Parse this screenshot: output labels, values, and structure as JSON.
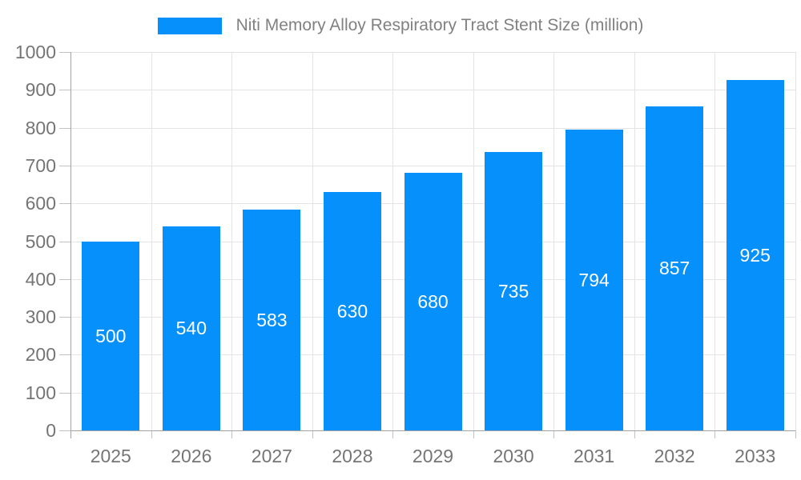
{
  "chart_data": {
    "type": "bar",
    "title": "Niti Memory Alloy Respiratory Tract Stent Size (million)",
    "categories": [
      "2025",
      "2026",
      "2027",
      "2028",
      "2029",
      "2030",
      "2031",
      "2032",
      "2033"
    ],
    "values": [
      500,
      540,
      583,
      630,
      680,
      735,
      794,
      857,
      925
    ],
    "xlabel": "",
    "ylabel": "",
    "ylim": [
      0,
      1000
    ],
    "ytick_step": 100,
    "ytick_labels": [
      "0",
      "100",
      "200",
      "300",
      "400",
      "500",
      "600",
      "700",
      "800",
      "900",
      "1000"
    ],
    "grid": true,
    "legend_position": "top-center",
    "bar_color": "#0590fb",
    "value_label_color": "#ffffff",
    "axis_text_color": "#757575",
    "title_color": "#818181"
  }
}
